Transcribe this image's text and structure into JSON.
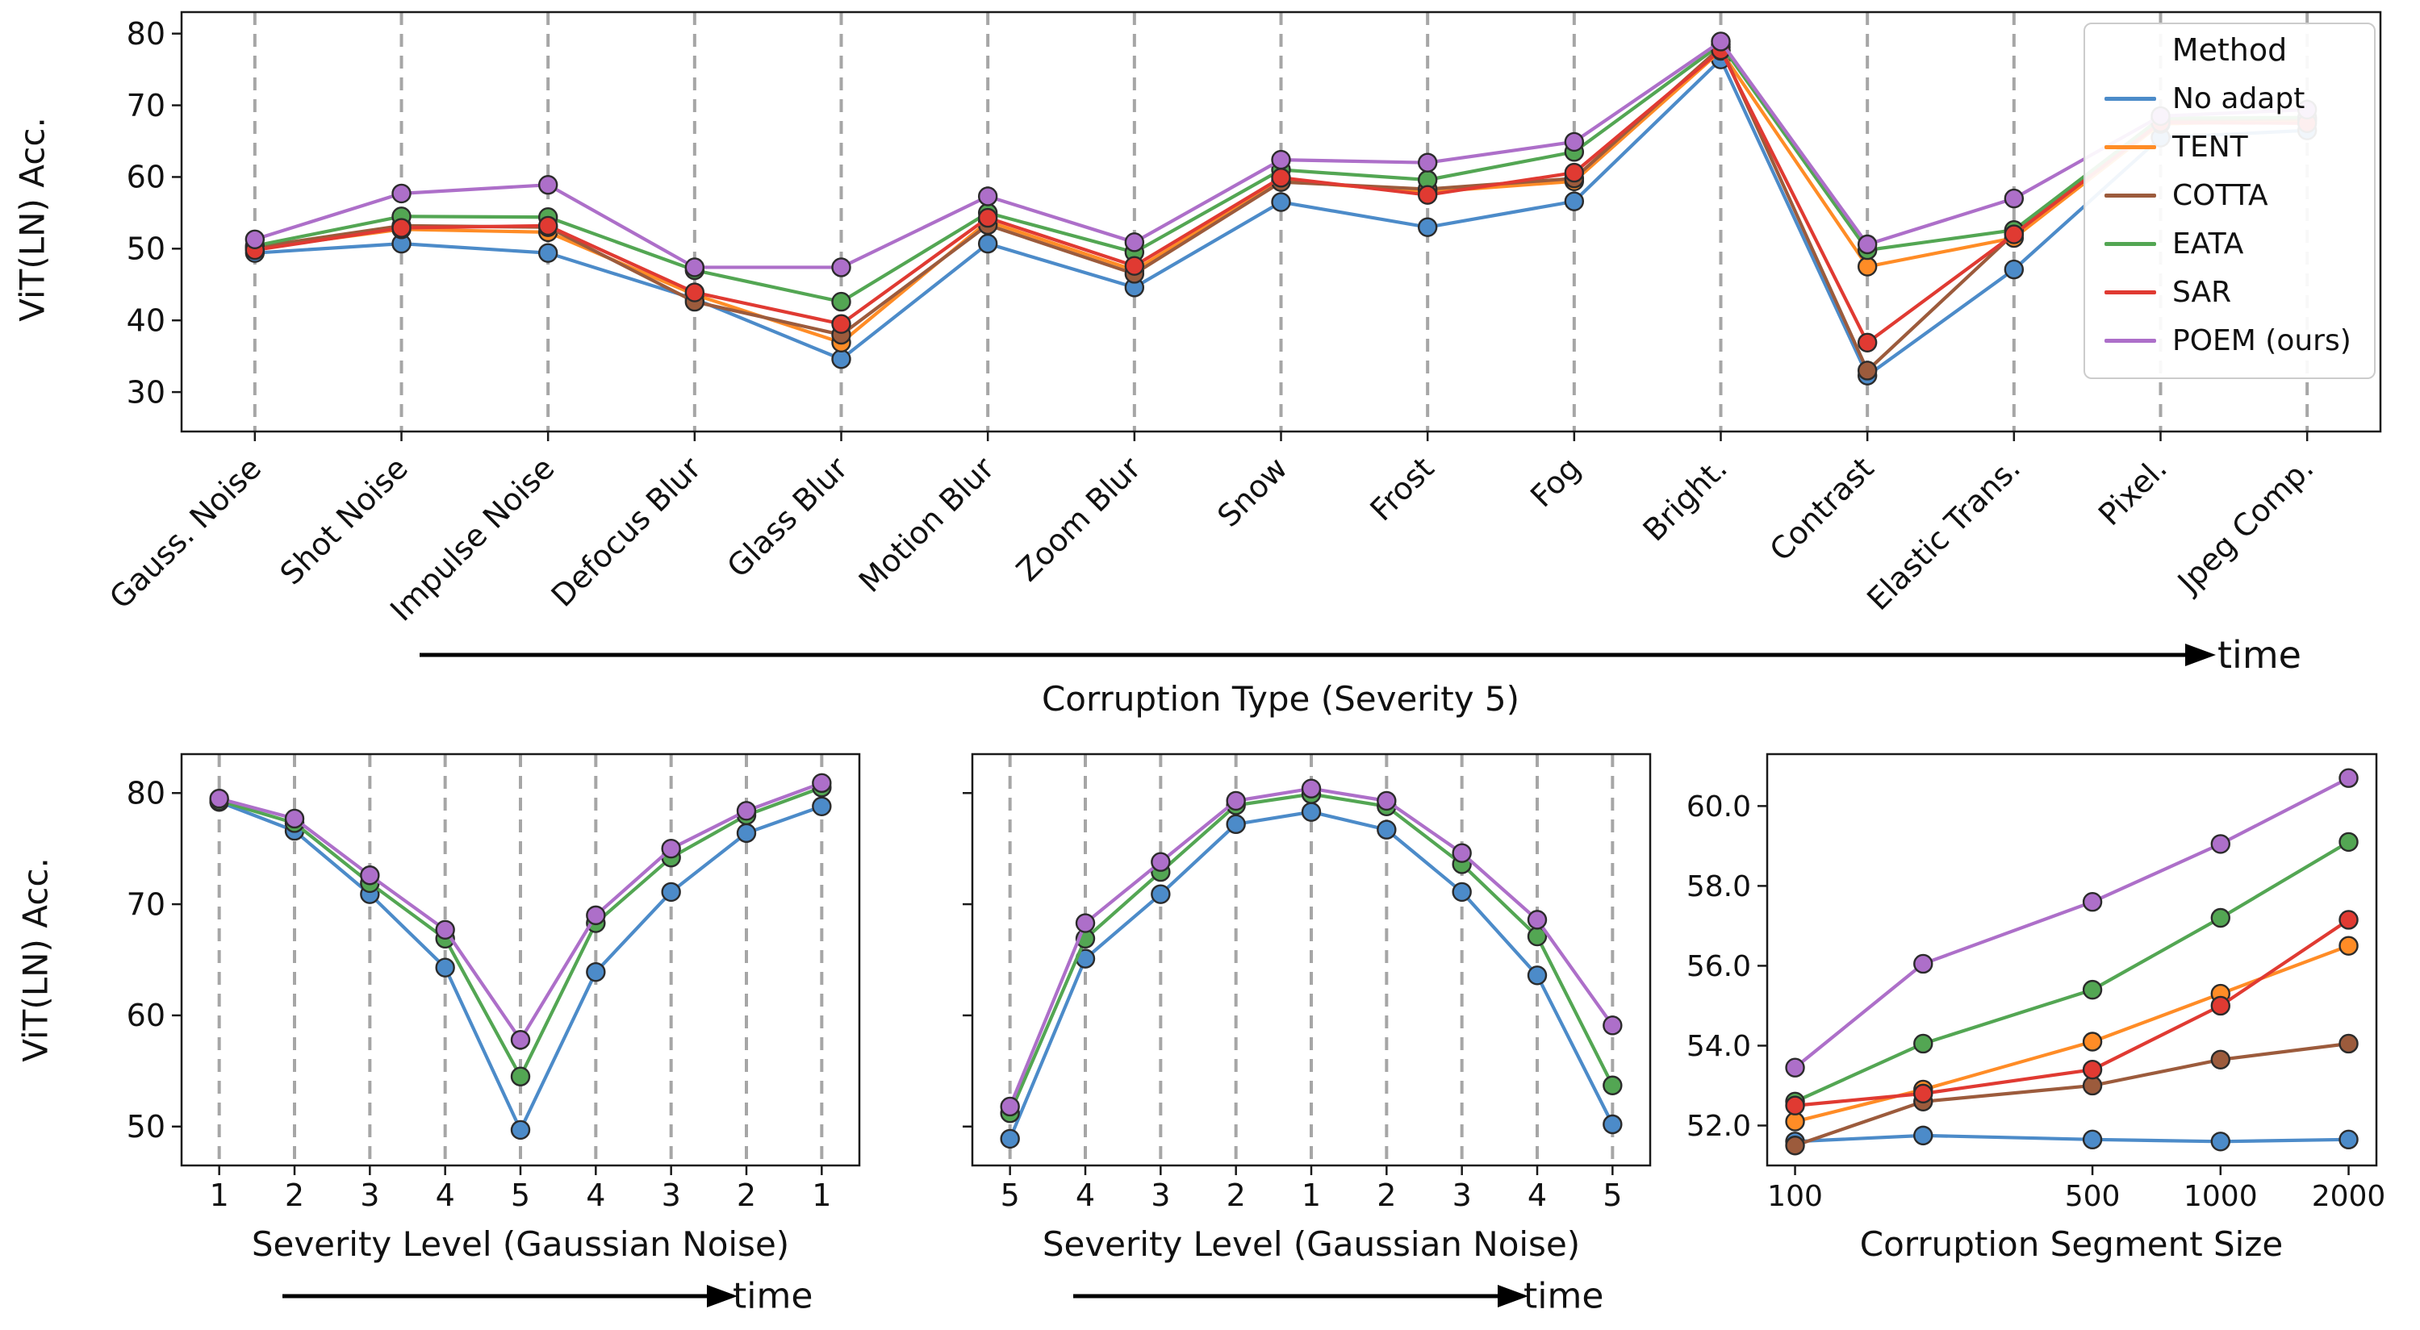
{
  "legend": {
    "title": "Method"
  },
  "methods": [
    {
      "name": "No adapt",
      "color": "#4c8bc9"
    },
    {
      "name": "TENT",
      "color": "#ff8c26"
    },
    {
      "name": "COTTA",
      "color": "#9c5b3c"
    },
    {
      "name": "EATA",
      "color": "#53a653"
    },
    {
      "name": "SAR",
      "color": "#e03a32"
    },
    {
      "name": "POEM (ours)",
      "color": "#ad6fc9"
    }
  ],
  "labels": {
    "ylabel": "ViT(LN) Acc.",
    "xlabel_main": "Corruption Type (Severity 5)",
    "xlabel_severity": "Severity Level (Gaussian Noise)",
    "xlabel_segment": "Corruption Segment Size",
    "time": "time"
  },
  "style": {
    "grid_color": "#a6a6a6",
    "spine_color": "#1a1a1a",
    "marker_edge": "#2b2b2b"
  },
  "chart_data": [
    {
      "id": "main",
      "type": "line",
      "xlabel": "Corruption Type (Severity 5)",
      "ylabel": "ViT(LN) Acc.",
      "grid": true,
      "legend_position": "upper right",
      "categories": [
        "Gauss. Noise",
        "Shot Noise",
        "Impulse Noise",
        "Defocus Blur",
        "Glass Blur",
        "Motion Blur",
        "Zoom Blur",
        "Snow",
        "Frost",
        "Fog",
        "Bright.",
        "Contrast",
        "Elastic Trans.",
        "Pixel.",
        "Jpeg Comp."
      ],
      "yticks": [
        30,
        40,
        50,
        60,
        70,
        80
      ],
      "ytick_labels": [
        "30",
        "40",
        "50",
        "60",
        "70",
        "80"
      ],
      "ylim": [
        24.5,
        83.0
      ],
      "series": [
        {
          "name": "No adapt",
          "values": [
            49.4,
            50.7,
            49.4,
            43.0,
            34.6,
            50.7,
            44.6,
            56.5,
            53.0,
            56.6,
            76.4,
            32.3,
            47.1,
            65.5,
            66.5
          ]
        },
        {
          "name": "TENT",
          "values": [
            50.0,
            52.7,
            52.3,
            43.6,
            36.9,
            53.8,
            47.0,
            59.5,
            57.9,
            59.4,
            77.6,
            47.5,
            51.5,
            67.4,
            67.9
          ]
        },
        {
          "name": "COTTA",
          "values": [
            50.2,
            53.2,
            53.0,
            42.6,
            38.0,
            53.3,
            46.5,
            59.3,
            58.3,
            59.8,
            78.1,
            33.0,
            52.1,
            68.0,
            68.1
          ]
        },
        {
          "name": "EATA",
          "values": [
            50.4,
            54.5,
            54.4,
            47.0,
            42.6,
            55.0,
            49.5,
            61.0,
            59.6,
            63.5,
            78.5,
            49.8,
            52.6,
            68.2,
            68.3
          ]
        },
        {
          "name": "SAR",
          "values": [
            49.8,
            52.9,
            53.2,
            43.9,
            39.5,
            54.3,
            47.6,
            59.9,
            57.5,
            60.6,
            77.7,
            36.9,
            52.0,
            67.6,
            67.5
          ]
        },
        {
          "name": "POEM (ours)",
          "values": [
            51.3,
            57.7,
            58.9,
            47.4,
            47.4,
            57.3,
            50.9,
            62.4,
            62.0,
            64.9,
            78.9,
            50.6,
            57.0,
            68.5,
            69.4
          ]
        }
      ]
    },
    {
      "id": "severity_down_up",
      "type": "line",
      "xlabel": "Severity Level (Gaussian Noise)",
      "ylabel": "ViT(LN) Acc.",
      "grid": true,
      "categories": [
        "1",
        "2",
        "3",
        "4",
        "5",
        "4",
        "3",
        "2",
        "1"
      ],
      "yticks": [
        50,
        60,
        70,
        80
      ],
      "ytick_labels": [
        "50",
        "60",
        "70",
        "80"
      ],
      "ylim": [
        46.5,
        83.5
      ],
      "series": [
        {
          "name": "No adapt",
          "values": [
            79.2,
            76.6,
            70.9,
            64.3,
            49.7,
            63.9,
            71.1,
            76.4,
            78.8
          ]
        },
        {
          "name": "EATA",
          "values": [
            79.3,
            77.3,
            71.9,
            66.9,
            54.5,
            68.3,
            74.2,
            78.0,
            80.5
          ]
        },
        {
          "name": "POEM (ours)",
          "values": [
            79.5,
            77.7,
            72.6,
            67.7,
            57.8,
            69.0,
            75.0,
            78.4,
            80.9
          ]
        }
      ]
    },
    {
      "id": "severity_up_down",
      "type": "line",
      "xlabel": "Severity Level (Gaussian Noise)",
      "grid": true,
      "categories": [
        "5",
        "4",
        "3",
        "2",
        "1",
        "2",
        "3",
        "4",
        "5"
      ],
      "yticks": [
        50,
        60,
        70,
        80
      ],
      "ytick_labels": [
        "50",
        "60",
        "70",
        "80"
      ],
      "ylim": [
        46.5,
        83.5
      ],
      "series": [
        {
          "name": "No adapt",
          "values": [
            48.9,
            65.1,
            70.9,
            77.2,
            78.3,
            76.7,
            71.1,
            63.6,
            50.2
          ]
        },
        {
          "name": "EATA",
          "values": [
            51.2,
            66.9,
            72.9,
            78.9,
            79.9,
            78.8,
            73.6,
            67.1,
            53.7
          ]
        },
        {
          "name": "POEM (ours)",
          "values": [
            51.8,
            68.3,
            73.8,
            79.3,
            80.4,
            79.3,
            74.6,
            68.6,
            59.1
          ]
        }
      ]
    },
    {
      "id": "segment_size",
      "type": "line",
      "xlabel": "Corruption Segment Size",
      "grid": false,
      "xscale": "log",
      "x": [
        100,
        200,
        500,
        1000,
        2000
      ],
      "xticks": [
        100,
        500,
        1000,
        2000
      ],
      "xtick_labels": [
        "100",
        "500",
        "1000",
        "2000"
      ],
      "xlim": [
        86,
        2325
      ],
      "yticks": [
        52,
        54,
        56,
        58,
        60
      ],
      "ytick_labels": [
        "52.0",
        "54.0",
        "56.0",
        "58.0",
        "60.0"
      ],
      "ylim": [
        51.0,
        61.3
      ],
      "series": [
        {
          "name": "No adapt",
          "values": [
            51.6,
            51.75,
            51.65,
            51.6,
            51.65
          ]
        },
        {
          "name": "TENT",
          "values": [
            52.1,
            52.9,
            54.1,
            55.3,
            56.5
          ]
        },
        {
          "name": "COTTA",
          "values": [
            51.5,
            52.6,
            53.0,
            53.65,
            54.05
          ]
        },
        {
          "name": "EATA",
          "values": [
            52.6,
            54.05,
            55.4,
            57.2,
            59.1
          ]
        },
        {
          "name": "SAR",
          "values": [
            52.5,
            52.8,
            53.4,
            55.0,
            57.15
          ]
        },
        {
          "name": "POEM (ours)",
          "values": [
            53.45,
            56.05,
            57.6,
            59.05,
            60.7
          ]
        }
      ]
    }
  ]
}
